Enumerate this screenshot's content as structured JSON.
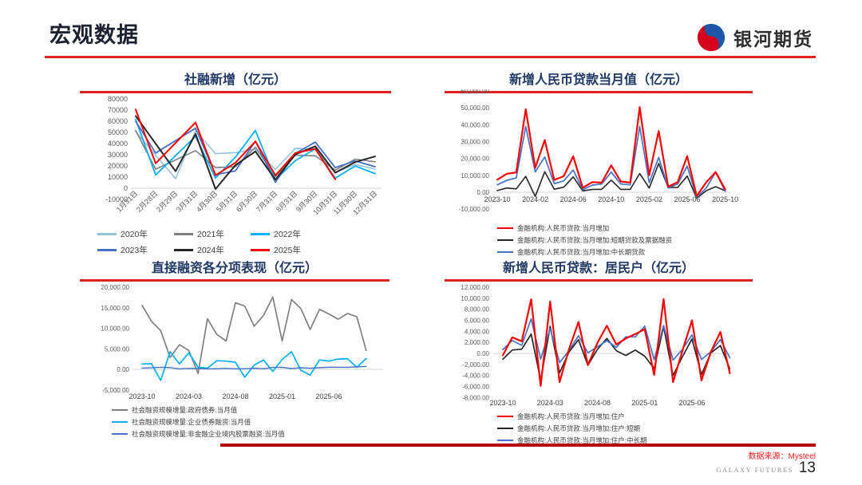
{
  "header": {
    "title": "宏观数据",
    "brand": "银河期货"
  },
  "footer": {
    "source": "数据来源：Mysteel",
    "brand": "GALAXY FUTURES",
    "page": "13"
  },
  "colors": {
    "accent_red": "#E0231E",
    "footer_red": "#B80000",
    "title_navy": "#1F3864"
  },
  "chart_data": [
    {
      "type": "line",
      "title": "社融新增（亿元）",
      "ylim": [
        -10000,
        80000
      ],
      "ytick": 10000,
      "yfmt": "plain",
      "x_label_style": "rotated",
      "legend_position": "bottom",
      "categories": [
        "1月31日",
        "2月28日",
        "2月29日",
        "3月31日",
        "4月30日",
        "5月31日",
        "6月30日",
        "7月31日",
        "8月31日",
        "9月30日",
        "10月31日",
        "11月30日",
        "12月31日"
      ],
      "series": [
        {
          "name": "2020年",
          "color": "#94C3DE",
          "values": [
            50700,
            null,
            8554,
            51600,
            30900,
            31900,
            34800,
            16900,
            35800,
            34800,
            14000,
            21300,
            17200
          ]
        },
        {
          "name": "2021年",
          "color": "#7F7F7F",
          "values": [
            51700,
            17100,
            null,
            33700,
            18500,
            19200,
            36700,
            10600,
            29600,
            29000,
            16200,
            26100,
            23700
          ]
        },
        {
          "name": "2022年",
          "color": "#00B0F0",
          "values": [
            61500,
            11900,
            null,
            46500,
            9100,
            27900,
            51700,
            7600,
            24700,
            35300,
            9100,
            19900,
            13100
          ]
        },
        {
          "name": "2023年",
          "color": "#4472C4",
          "values": [
            59900,
            31600,
            null,
            53800,
            12200,
            15600,
            42200,
            5300,
            31200,
            41300,
            18500,
            24500,
            19300
          ]
        },
        {
          "name": "2024年",
          "color": "#262626",
          "values": [
            64700,
            null,
            15200,
            48700,
            -700,
            20700,
            33000,
            7700,
            30300,
            37600,
            13900,
            23400,
            28500
          ]
        },
        {
          "name": "2025年",
          "color": "#FF0000",
          "values": [
            70500,
            22300,
            null,
            58900,
            11600,
            22900,
            42000,
            11500,
            31600,
            35300,
            8000,
            null,
            null
          ]
        }
      ]
    },
    {
      "type": "line",
      "title": "新增人民币贷款当月值（亿元）",
      "ylim": [
        -10000,
        60000
      ],
      "ytick": 10000,
      "yfmt": "money",
      "x_label_style": "horizontal",
      "label_indices": [
        0,
        4,
        8,
        12,
        16,
        20,
        24
      ],
      "legend_position": "bottom",
      "categories": [
        "2023-10",
        "2023-11",
        "2023-12",
        "2024-01",
        "2024-02",
        "2024-03",
        "2024-04",
        "2024-05",
        "2024-06",
        "2024-07",
        "2024-08",
        "2024-09",
        "2024-10",
        "2024-11",
        "2024-12",
        "2025-01",
        "2025-02",
        "2025-03",
        "2025-04",
        "2025-05",
        "2025-06",
        "2025-07",
        "2025-08",
        "2025-09",
        "2025-10"
      ],
      "series": [
        {
          "name": "金融机构:人民币贷款:当月增加",
          "color": "#FF0000",
          "values": [
            7400,
            10900,
            11700,
            49200,
            14500,
            30900,
            7300,
            9500,
            21300,
            2600,
            6000,
            5700,
            15900,
            6400,
            5700,
            50400,
            10100,
            36300,
            3300,
            6000,
            21400,
            -2200,
            5900,
            11900,
            1700
          ]
        },
        {
          "name": "金融机构:人民币贷款:当月增加:短期贷款及票据融资",
          "color": "#262626",
          "values": [
            1000,
            2500,
            2000,
            9400,
            -2500,
            12200,
            1800,
            3000,
            9100,
            800,
            1700,
            1700,
            7200,
            1700,
            1700,
            11100,
            2500,
            17000,
            2800,
            2900,
            9600,
            -3500,
            900,
            3300,
            900
          ]
        },
        {
          "name": "金融机构:人民币贷款:当月增加:中长期贷款",
          "color": "#4472C4",
          "values": [
            4400,
            7000,
            8500,
            39000,
            12000,
            20900,
            5100,
            6700,
            13200,
            1500,
            4200,
            4900,
            11900,
            4900,
            4400,
            39000,
            5700,
            20600,
            2500,
            4900,
            15500,
            -3000,
            2500,
            11900,
            600
          ]
        }
      ]
    },
    {
      "type": "line",
      "title": "直接融资各分项表现（亿元）",
      "ylim": [
        -5000,
        20000
      ],
      "ytick": 5000,
      "yfmt": "money",
      "x_label_style": "horizontal",
      "label_indices": [
        0,
        5,
        10,
        15,
        20
      ],
      "legend_position": "bottom",
      "categories": [
        "2023-10",
        "2023-11",
        "2023-12",
        "2024-01",
        "2024-02",
        "2024-03",
        "2024-04",
        "2024-05",
        "2024-06",
        "2024-07",
        "2024-08",
        "2024-09",
        "2024-10",
        "2024-11",
        "2024-12",
        "2025-01",
        "2025-02",
        "2025-03",
        "2025-04",
        "2025-05",
        "2025-06",
        "2025-07",
        "2025-08",
        "2025-09",
        "2025-10"
      ],
      "series": [
        {
          "name": "社会融资规模增量:政府债券:当月值",
          "color": "#808080",
          "values": [
            15600,
            11700,
            9400,
            2900,
            6000,
            4600,
            -1000,
            12300,
            8500,
            6900,
            16200,
            15400,
            10500,
            13100,
            17600,
            6900,
            17000,
            14800,
            9700,
            14600,
            13500,
            12200,
            13600,
            12800,
            4600
          ]
        },
        {
          "name": "社会融资规模增量:企业债券融资:当月值",
          "color": "#00B0F0",
          "values": [
            1300,
            1400,
            -2700,
            4300,
            1300,
            4000,
            500,
            300,
            2100,
            2000,
            1700,
            -1900,
            1000,
            2300,
            -500,
            2400,
            4300,
            -200,
            -1400,
            2300,
            2000,
            2500,
            2600,
            500,
            2600
          ]
        },
        {
          "name": "社会融资规模增量:非金融企业境内股票融资:当月值",
          "color": "#4472C4",
          "values": [
            320,
            360,
            500,
            420,
            110,
            230,
            190,
            110,
            150,
            230,
            130,
            130,
            280,
            130,
            470,
            480,
            180,
            380,
            280,
            380,
            530,
            500,
            480,
            620,
            700
          ]
        }
      ]
    },
    {
      "type": "line",
      "title": "新增人民币贷款：居民户（亿元）",
      "ylim": [
        -8000,
        12000
      ],
      "ytick": 2000,
      "yfmt": "money",
      "x_label_style": "horizontal",
      "label_indices": [
        0,
        5,
        10,
        15,
        20
      ],
      "legend_position": "bottom",
      "categories": [
        "2023-10",
        "2023-11",
        "2023-12",
        "2024-01",
        "2024-02",
        "2024-03",
        "2024-04",
        "2024-05",
        "2024-06",
        "2024-07",
        "2024-08",
        "2024-09",
        "2024-10",
        "2024-11",
        "2024-12",
        "2025-01",
        "2025-02",
        "2025-03",
        "2025-04",
        "2025-05",
        "2025-06",
        "2025-07",
        "2025-08",
        "2025-09",
        "2025-10"
      ],
      "series": [
        {
          "name": "金融机构:人民币贷款:当月增加:住户",
          "color": "#FF0000",
          "values": [
            -350,
            2900,
            2200,
            9800,
            -5900,
            9400,
            -5200,
            760,
            5700,
            -2100,
            1900,
            5000,
            1600,
            2700,
            3500,
            4400,
            -3900,
            9850,
            -5200,
            540,
            5980,
            -4900,
            300,
            3890,
            -3600
          ]
        },
        {
          "name": "金融机构:人民币贷款:当月增加:住户:短期",
          "color": "#262626",
          "values": [
            -1050,
            600,
            760,
            3500,
            -4870,
            4900,
            -3520,
            240,
            2470,
            -2160,
            720,
            2700,
            490,
            -370,
            590,
            -500,
            -2740,
            4840,
            -4020,
            -580,
            2620,
            -3830,
            100,
            1420,
            -2800
          ]
        },
        {
          "name": "金融机构:人民币贷款:当月增加:住户:中长期",
          "color": "#4472C4",
          "values": [
            700,
            2330,
            1460,
            6270,
            -1040,
            4520,
            -1670,
            510,
            3200,
            100,
            1200,
            2300,
            1100,
            3000,
            3000,
            4930,
            -1150,
            5050,
            -1230,
            750,
            3350,
            -1100,
            300,
            2500,
            -800
          ]
        }
      ]
    }
  ]
}
